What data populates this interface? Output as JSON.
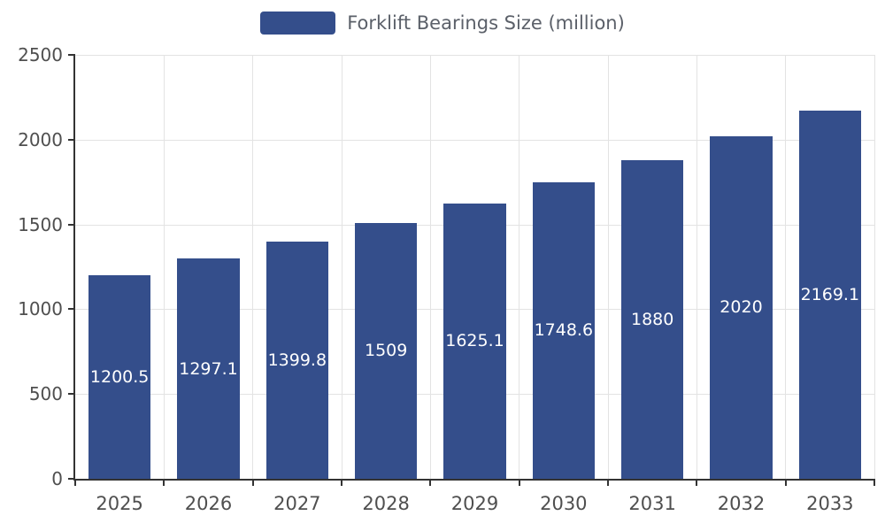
{
  "chart_data": {
    "type": "bar",
    "title": "Forklift Bearings Size (million)",
    "categories": [
      "2025",
      "2026",
      "2027",
      "2028",
      "2029",
      "2030",
      "2031",
      "2032",
      "2033"
    ],
    "values": [
      1200.5,
      1297.1,
      1399.8,
      1509,
      1625.1,
      1748.6,
      1880,
      2020,
      2169.1
    ],
    "value_labels": [
      "1200.5",
      "1297.1",
      "1399.8",
      "1509",
      "1625.1",
      "1748.6",
      "1880",
      "2020",
      "2169.1"
    ],
    "xlabel": "",
    "ylabel": "",
    "ylim": [
      0,
      2500
    ],
    "yticks": [
      0,
      500,
      1000,
      1500,
      2000,
      2500
    ],
    "grid": true,
    "legend_position": "top-center",
    "bar_color": "#344e8b",
    "label_color": "#ffffff",
    "axis_color": "#333333",
    "grid_color": "#e3e3e3",
    "tick_label_color": "#4f4f4f",
    "legend_text_color": "#5b6069"
  }
}
